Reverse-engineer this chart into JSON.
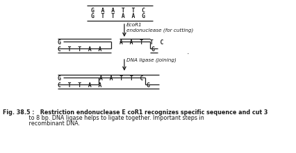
{
  "bg_color": "#ffffff",
  "fig_width": 4.27,
  "fig_height": 2.21,
  "dpi": 100,
  "caption_line1": "Fig. 38.5 :   Restriction endonuclease E coR1 recognizes specific sequence and cut 3",
  "caption_line2": "               to 8 bp. DNA ligase helps to ligate together. Important steps in",
  "caption_line3": "               recombinant DNA.",
  "top_seq_top": "G  A  A  T  T  C",
  "top_seq_bot": "G  T  T  A  A  G",
  "mid_left_top": "G",
  "mid_left_bot": "C  T  T  A  A",
  "mid_right_top": "A  A  T  T  C",
  "mid_right_bot": "G",
  "bot_left_top": "G",
  "bot_left_bot": "C  T  T  A  A",
  "bot_right_top": "A  A  T  T  C",
  "bot_right_bot": "G",
  "label_ecor1": "EcoR1\nendonuclease (for cutting)",
  "label_ligase": "DNA ligase (joining)",
  "text_color": "#1a1a1a",
  "line_color": "#1a1a1a",
  "seq_font_size": 5.8,
  "label_font_size": 5.2,
  "caption_font_size": 5.8
}
